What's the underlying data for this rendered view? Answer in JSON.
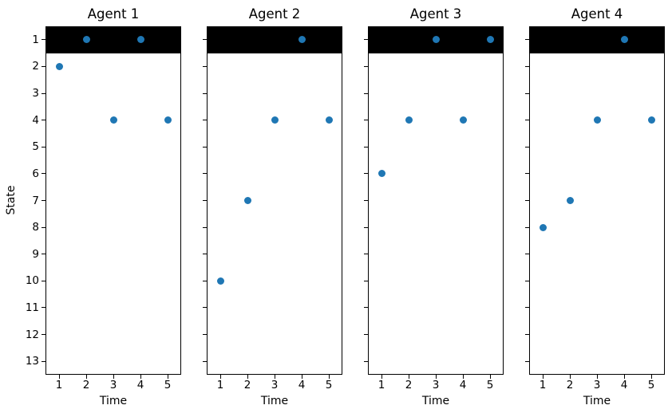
{
  "figure": {
    "background": "#ffffff"
  },
  "labels": {
    "xlabel": "Time",
    "ylabel": "State"
  },
  "style": {
    "marker_color": "#1f77b4",
    "band_color": "#000000",
    "axis_color": "#000000"
  },
  "axes": {
    "xlim": [
      0.5,
      5.5
    ],
    "ylim": [
      0.5,
      13.5
    ],
    "y_inverted": true,
    "x_ticks": [
      1,
      2,
      3,
      4,
      5
    ],
    "y_ticks": [
      1,
      2,
      3,
      4,
      5,
      6,
      7,
      8,
      9,
      10,
      11,
      12,
      13
    ],
    "grid": false,
    "band": {
      "y_from": 0.5,
      "y_to": 1.5
    }
  },
  "chart_data": [
    {
      "type": "scatter",
      "title": "Agent 1",
      "xlabel": "Time",
      "x": [
        1,
        2,
        3,
        4,
        5
      ],
      "y": [
        2,
        1,
        4,
        1,
        4
      ]
    },
    {
      "type": "scatter",
      "title": "Agent 2",
      "xlabel": "Time",
      "x": [
        1,
        2,
        3,
        4,
        5
      ],
      "y": [
        10,
        7,
        4,
        1,
        4
      ]
    },
    {
      "type": "scatter",
      "title": "Agent 3",
      "xlabel": "Time",
      "x": [
        1,
        2,
        3,
        4,
        5
      ],
      "y": [
        6,
        4,
        1,
        4,
        1
      ]
    },
    {
      "type": "scatter",
      "title": "Agent 4",
      "xlabel": "Time",
      "x": [
        1,
        2,
        3,
        4,
        5
      ],
      "y": [
        8,
        7,
        4,
        1,
        4
      ]
    }
  ]
}
